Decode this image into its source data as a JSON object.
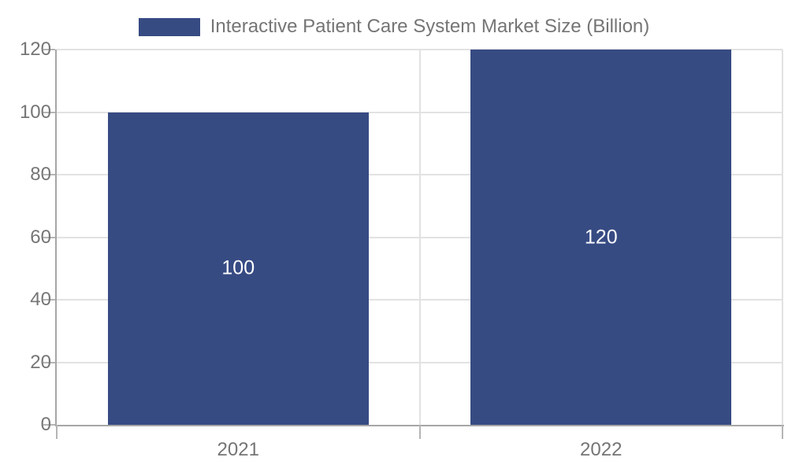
{
  "chart_data": {
    "type": "bar",
    "title": "Interactive Patient Care System Market Size (Billion)",
    "categories": [
      "2021",
      "2022"
    ],
    "values": [
      100,
      120
    ],
    "value_labels": [
      "100",
      "120"
    ],
    "xlabel": "",
    "ylabel": "",
    "ylim": [
      0,
      120
    ],
    "yticks": [
      0,
      20,
      40,
      60,
      80,
      100,
      120
    ],
    "grid": "on",
    "legend_position": "top-center",
    "legend_entries": [
      "Interactive Patient Care System Market Size (Billion)"
    ]
  },
  "colors": {
    "bar": "#374b83",
    "grid": "#e2e2e2",
    "axis": "#a6a6a6",
    "tick": "#b5b5b5",
    "axis_text": "#757575",
    "value_label_text": "#ffffff",
    "background": "#ffffff"
  }
}
